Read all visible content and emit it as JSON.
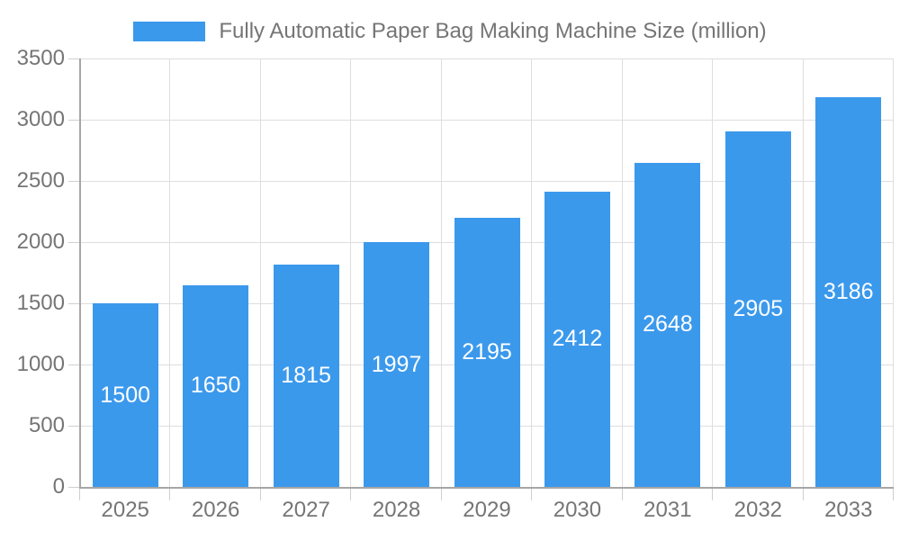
{
  "legend": {
    "label": "Fully Automatic Paper Bag Making Machine Size (million)"
  },
  "chart_data": {
    "type": "bar",
    "title": "Fully Automatic Paper Bag Making Machine Size (million)",
    "categories": [
      "2025",
      "2026",
      "2027",
      "2028",
      "2029",
      "2030",
      "2031",
      "2032",
      "2033"
    ],
    "values": [
      1500,
      1650,
      1815,
      1997,
      2195,
      2412,
      2648,
      2905,
      3186
    ],
    "xlabel": "",
    "ylabel": "",
    "ylim": [
      0,
      3500
    ],
    "ytick_step": 500,
    "grid": true,
    "legend_position": "top",
    "value_labels": "inside-center"
  },
  "colors": {
    "bar": "#3b99ec",
    "grid": "#dedede",
    "axis": "#a6a6a6",
    "tick": "#cfcfcf",
    "text": "#757575",
    "value_label": "#ffffff",
    "background": "#ffffff"
  }
}
